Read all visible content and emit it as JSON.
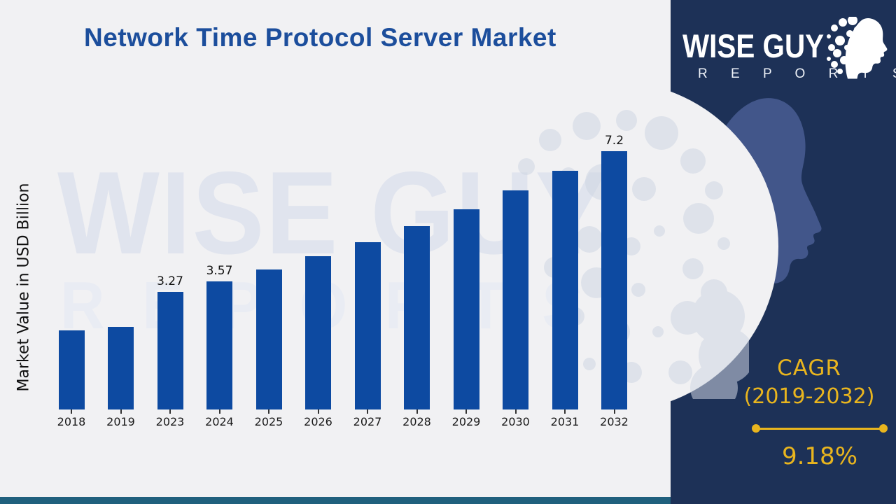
{
  "page": {
    "background": "#f1f1f3",
    "bottom_bar_color": "#20607d",
    "panel_color": "#1d3157"
  },
  "header": {
    "title": "Network Time Protocol Server Market",
    "title_color": "#1c4e9c"
  },
  "branding": {
    "logo": {
      "line1": "WISE GUY",
      "line2": "R E P O R T S"
    },
    "watermark": {
      "line1": "WISE GUY",
      "line2": "REPORTS"
    }
  },
  "chart_data": {
    "type": "bar",
    "title": "Network Time Protocol Server Market",
    "xlabel": "",
    "ylabel": "Market Value in USD Billion",
    "categories": [
      "2018",
      "2019",
      "2023",
      "2024",
      "2025",
      "2026",
      "2027",
      "2028",
      "2029",
      "2030",
      "2031",
      "2032"
    ],
    "values": [
      2.2,
      2.3,
      3.27,
      3.57,
      3.9,
      4.26,
      4.65,
      5.1,
      5.57,
      6.1,
      6.65,
      7.2
    ],
    "value_labels": [
      null,
      null,
      "3.27",
      "3.57",
      null,
      null,
      null,
      null,
      null,
      null,
      null,
      "7.2"
    ],
    "bar_color": "#0d4aa1",
    "ylim": [
      0,
      7.8
    ],
    "grid": false,
    "legend": null
  },
  "sidebar": {
    "cagr_label": "CAGR",
    "cagr_period": "(2019-2032)",
    "cagr_value": "9.18%",
    "accent_color": "#e9b51e"
  }
}
